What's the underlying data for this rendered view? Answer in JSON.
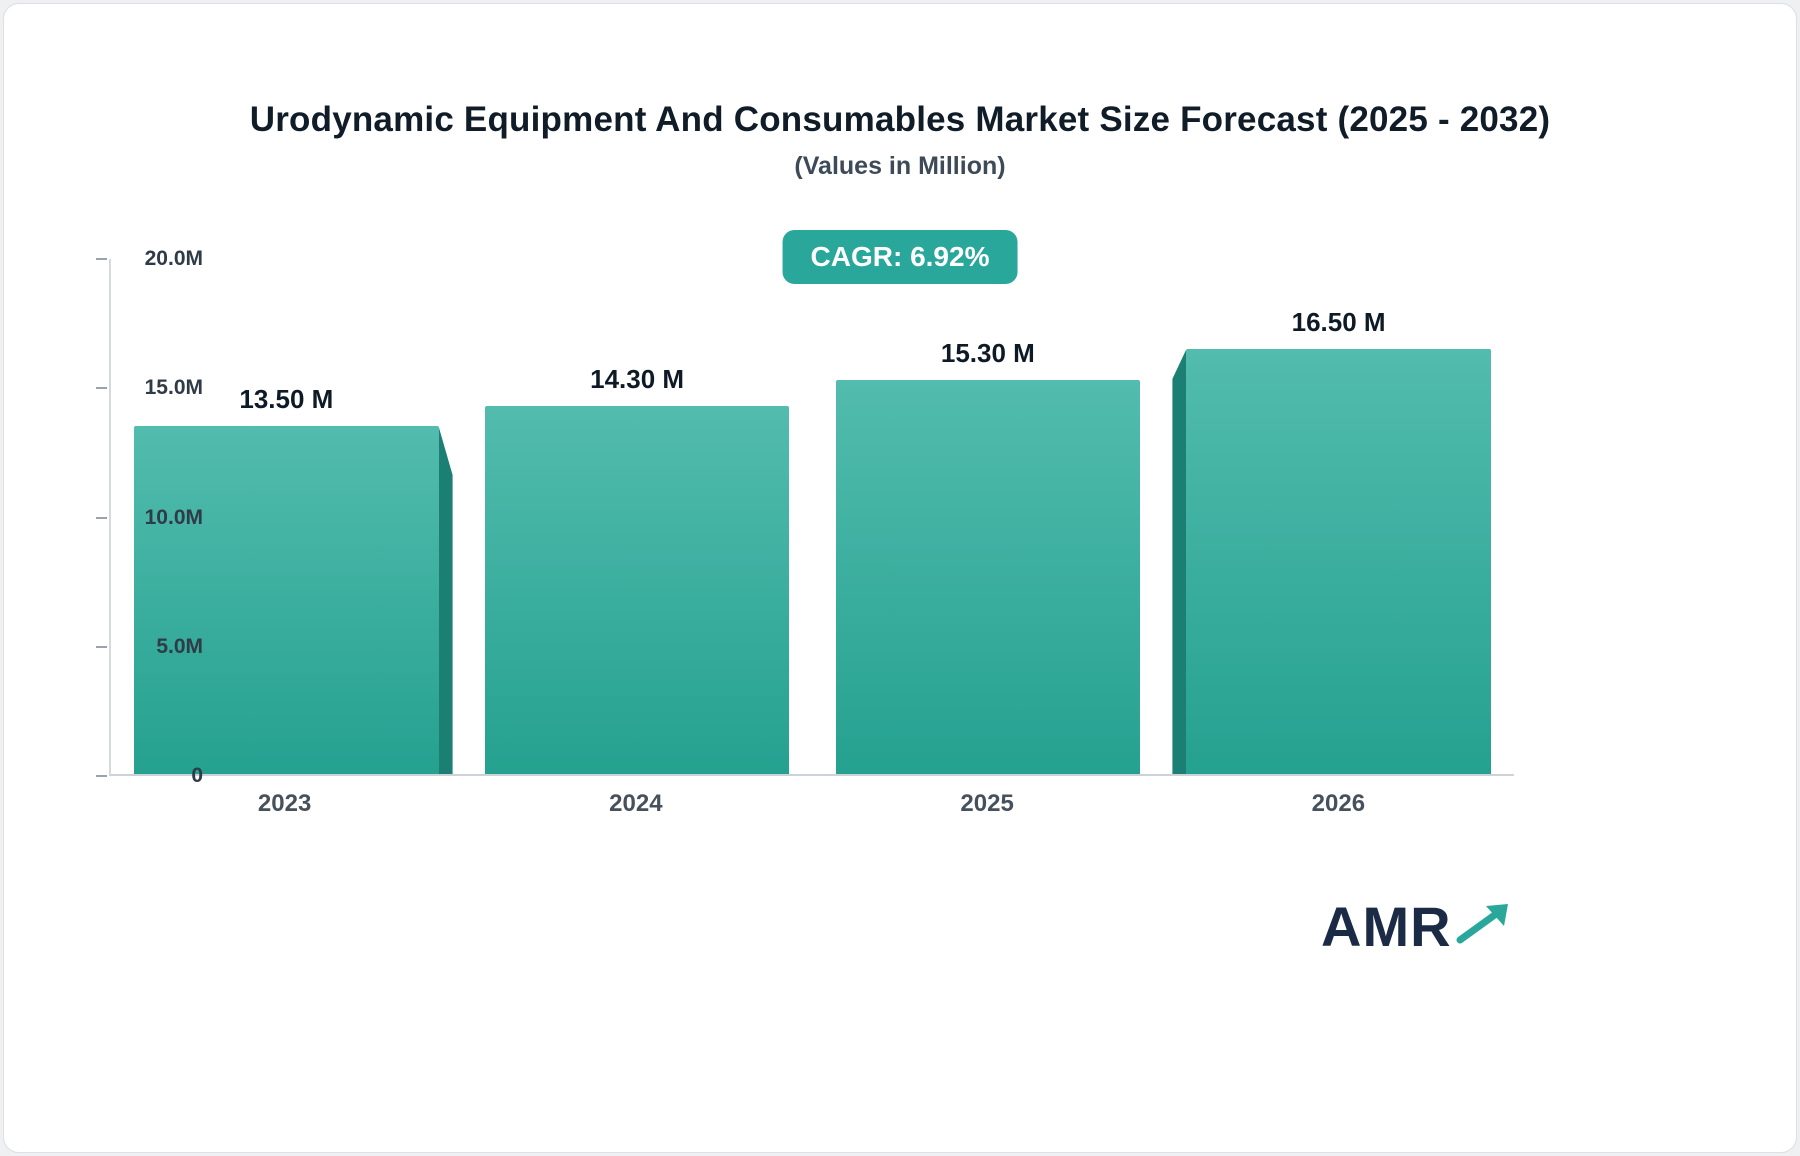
{
  "header": {
    "title": "Urodynamic Equipment And Consumables Market Size Forecast (2025 - 2032)",
    "subtitle": "(Values in Million)"
  },
  "badge": {
    "label": "CAGR: 6.92%"
  },
  "logo": {
    "text": "AMR"
  },
  "colors": {
    "accent_teal": "#2aa79b",
    "badge_bg": "#2aa79b",
    "bar_gradient_top": "#52bcae",
    "bar_gradient_bottom": "#25a190",
    "bar_edge": "#1c7f73",
    "title_text": "#101c28",
    "subtitle_text": "#3d4a57",
    "y_label_text": "#2f3b46",
    "x_label_text": "#46515c",
    "axis_line": "#d5dade",
    "logo_text": "#1b2b45",
    "logo_arrow": "#2aa79b"
  },
  "chart_data": {
    "type": "bar",
    "title": "Urodynamic Equipment And Consumables Market Size Forecast (2025 - 2032)",
    "subtitle": "(Values in Million)",
    "cagr": "6.92%",
    "categories": [
      "2023",
      "2024",
      "2025",
      "2026"
    ],
    "values": [
      13.5,
      14.3,
      15.3,
      16.5
    ],
    "value_labels": [
      "13.50 M",
      "14.30 M",
      "15.30 M",
      "16.50 M"
    ],
    "xlabel": "",
    "ylabel": "",
    "ylim": [
      0,
      20
    ],
    "yticks": [
      {
        "value": 0,
        "label": "0"
      },
      {
        "value": 5,
        "label": "5.0M"
      },
      {
        "value": 10,
        "label": "10.0M"
      },
      {
        "value": 15,
        "label": "15.0M"
      },
      {
        "value": 20,
        "label": "20.0M"
      }
    ],
    "grid": false,
    "legend": "none",
    "bar_edges": [
      "right",
      null,
      null,
      "left"
    ]
  }
}
